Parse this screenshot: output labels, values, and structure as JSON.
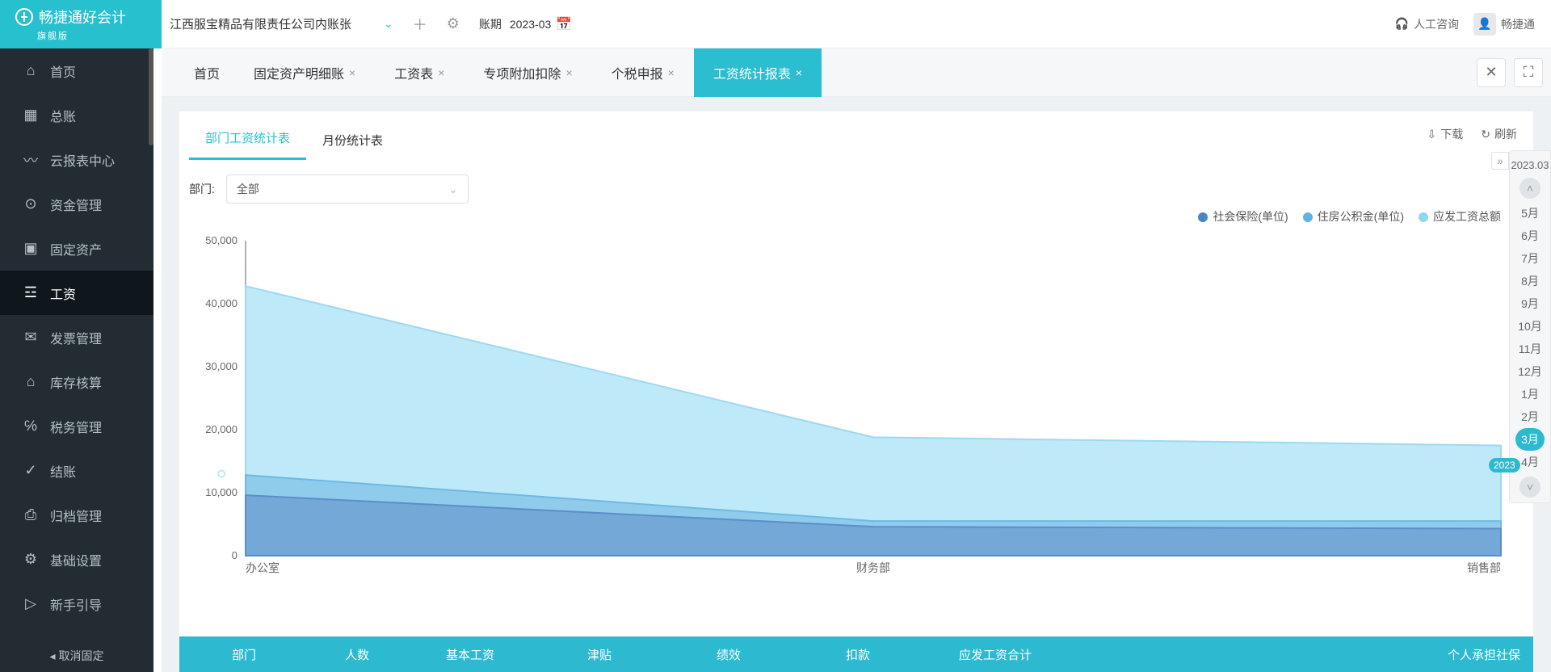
{
  "brand": {
    "name": "畅捷通好会计",
    "edition": "旗舰版"
  },
  "company": "江西服宝精品有限责任公司内账张",
  "period": {
    "label": "账期",
    "value": "2023-03"
  },
  "top_right": {
    "consult": "人工咨询",
    "user": "畅捷通"
  },
  "sidebar": [
    {
      "icon": "⌂",
      "label": "首页"
    },
    {
      "icon": "▦",
      "label": "总账"
    },
    {
      "icon": "〰",
      "label": "云报表中心"
    },
    {
      "icon": "⊙",
      "label": "资金管理"
    },
    {
      "icon": "▣",
      "label": "固定资产"
    },
    {
      "icon": "☲",
      "label": "工资",
      "active": true
    },
    {
      "icon": "✉",
      "label": "发票管理"
    },
    {
      "icon": "⌂",
      "label": "库存核算"
    },
    {
      "icon": "℅",
      "label": "税务管理"
    },
    {
      "icon": "✓",
      "label": "结账"
    },
    {
      "icon": "⎙",
      "label": "归档管理"
    },
    {
      "icon": "⚙",
      "label": "基础设置"
    },
    {
      "icon": "▷",
      "label": "新手引导"
    }
  ],
  "sidebar_bottom": "◂ 取消固定",
  "tabs": [
    {
      "label": "首页",
      "closable": false
    },
    {
      "label": "固定资产明细账",
      "closable": true
    },
    {
      "label": "工资表",
      "closable": true
    },
    {
      "label": "专项附加扣除",
      "closable": true
    },
    {
      "label": "个税申报",
      "closable": true
    },
    {
      "label": "工资统计报表",
      "closable": true,
      "active": true
    }
  ],
  "subtabs": [
    {
      "label": "部门工资统计表",
      "active": true
    },
    {
      "label": "月份统计表"
    }
  ],
  "actions": {
    "download": "下载",
    "refresh": "刷新"
  },
  "filter": {
    "label": "部门:",
    "value": "全部"
  },
  "chart": {
    "type": "area",
    "legend": [
      {
        "label": "社会保险(单位)",
        "color": "#4a86c5"
      },
      {
        "label": "住房公积金(单位)",
        "color": "#5cb3e4"
      },
      {
        "label": "应发工资总额",
        "color": "#8cd8f0"
      }
    ],
    "y_ticks": [
      0,
      10000,
      20000,
      30000,
      40000,
      50000
    ],
    "y_label_fmt": [
      "0",
      "10,000",
      "20,000",
      "30,000",
      "40,000",
      "50,000"
    ],
    "categories": [
      "办公室",
      "财务部",
      "销售部"
    ],
    "series": {
      "social": [
        9600,
        4600,
        4300
      ],
      "fund": [
        12800,
        5500,
        5500
      ],
      "salary": [
        42800,
        18800,
        17500
      ]
    },
    "colors": {
      "social": "#5b8fc7",
      "fund": "#6fb9e2",
      "salary": "#9cdaf2",
      "salary_fill": "#a8e1f5",
      "fund_fill": "#7fc2e8",
      "social_fill": "#6a9cd0"
    },
    "background": "#ffffff",
    "ylim": [
      0,
      50000
    ],
    "label_fontsize": 13
  },
  "table_columns": [
    "部门",
    "人数",
    "基本工资",
    "津贴",
    "绩效",
    "扣款",
    "应发工资合计"
  ],
  "table_right_hint": "个人承担社保",
  "rail": {
    "head": "2023.03",
    "months": [
      "5月",
      "6月",
      "7月",
      "8月",
      "9月",
      "10月",
      "11月",
      "12月",
      "1月",
      "2月",
      "3月",
      "4月"
    ],
    "active_index": 10,
    "year": "2023"
  }
}
